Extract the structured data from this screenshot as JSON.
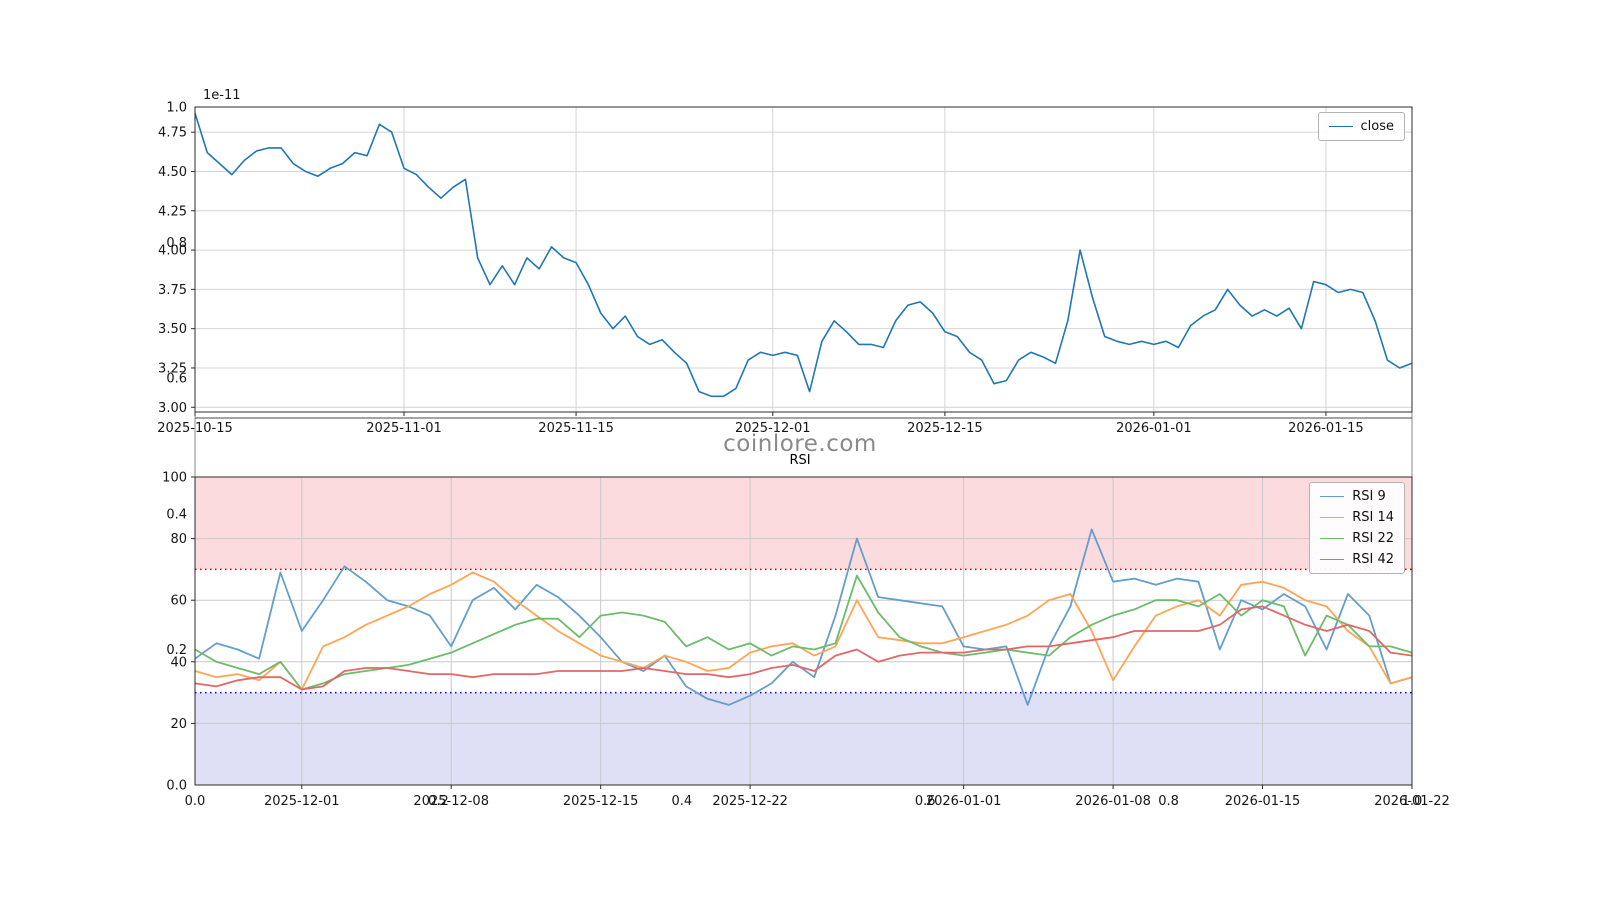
{
  "watermark": "coinlore.com",
  "phantom_axis": {
    "left_labels": [
      "1.0",
      "0.8",
      "0.6",
      "0.4",
      "0.2",
      "0.0"
    ],
    "bottom_labels": [
      "0.0",
      "0.2",
      "0.4",
      "0.6",
      "0.8",
      "1.0"
    ]
  },
  "chart_data": [
    {
      "type": "line",
      "title": "",
      "y_offset_text": "1e-11",
      "ylim": [
        2.97,
        4.91
      ],
      "yticks": [
        3.0,
        3.25,
        3.5,
        3.75,
        4.0,
        4.25,
        4.5,
        4.75
      ],
      "ytick_labels": [
        "3.00",
        "3.25",
        "3.50",
        "3.75",
        "4.00",
        "4.25",
        "4.50",
        "4.75"
      ],
      "xticks": [
        {
          "day": 0,
          "label": "2025-10-15"
        },
        {
          "day": 17,
          "label": "2025-11-01"
        },
        {
          "day": 31,
          "label": "2025-11-15"
        },
        {
          "day": 47,
          "label": "2025-12-01"
        },
        {
          "day": 61,
          "label": "2025-12-15"
        },
        {
          "day": 78,
          "label": "2026-01-01"
        },
        {
          "day": 92,
          "label": "2026-01-15"
        }
      ],
      "grid": true,
      "legend_position": "upper right",
      "series": [
        {
          "name": "close",
          "color": "#1f77b4",
          "values": [
            4.87,
            4.62,
            4.55,
            4.48,
            4.57,
            4.63,
            4.65,
            4.65,
            4.55,
            4.5,
            4.47,
            4.52,
            4.55,
            4.62,
            4.6,
            4.8,
            4.75,
            4.52,
            4.48,
            4.4,
            4.33,
            4.4,
            4.45,
            3.95,
            3.78,
            3.9,
            3.78,
            3.95,
            3.88,
            4.02,
            3.95,
            3.92,
            3.78,
            3.6,
            3.5,
            3.58,
            3.45,
            3.4,
            3.43,
            3.35,
            3.28,
            3.1,
            3.07,
            3.07,
            3.12,
            3.3,
            3.35,
            3.33,
            3.35,
            3.33,
            3.1,
            3.42,
            3.55,
            3.48,
            3.4,
            3.4,
            3.38,
            3.55,
            3.65,
            3.67,
            3.6,
            3.48,
            3.45,
            3.35,
            3.3,
            3.15,
            3.17,
            3.3,
            3.35,
            3.32,
            3.28,
            3.55,
            4.0,
            3.7,
            3.45,
            3.42,
            3.4,
            3.42,
            3.4,
            3.42,
            3.38,
            3.52,
            3.58,
            3.62,
            3.75,
            3.65,
            3.58,
            3.62,
            3.58,
            3.63,
            3.5,
            3.8,
            3.78,
            3.73,
            3.75,
            3.73,
            3.55,
            3.3,
            3.25,
            3.28
          ]
        }
      ]
    },
    {
      "type": "line",
      "title": "RSI",
      "ylim": [
        0,
        100
      ],
      "yticks": [
        20,
        40,
        60,
        80,
        100
      ],
      "ytick_labels": [
        "20",
        "40",
        "60",
        "80",
        "100"
      ],
      "overbought_level": 70,
      "oversold_level": 30,
      "overbought_fill": "#fbdbdd",
      "oversold_fill": "#dfdff6",
      "overbought_line_color": "#d40000",
      "oversold_line_color": "#0000c0",
      "xticks": [
        {
          "day": 5,
          "label": "2025-12-01"
        },
        {
          "day": 12,
          "label": "2025-12-08"
        },
        {
          "day": 19,
          "label": "2025-12-15"
        },
        {
          "day": 26,
          "label": "2025-12-22"
        },
        {
          "day": 36,
          "label": "2026-01-01"
        },
        {
          "day": 43,
          "label": "2026-01-08"
        },
        {
          "day": 50,
          "label": "2026-01-15"
        },
        {
          "day": 57,
          "label": "2026-01-22"
        }
      ],
      "grid": true,
      "legend_position": "upper right",
      "series": [
        {
          "name": "RSI 9",
          "color": "#639fca",
          "values": [
            41,
            46,
            44,
            41,
            69,
            50,
            60,
            71,
            66,
            60,
            58,
            55,
            45,
            60,
            64,
            57,
            65,
            61,
            55,
            48,
            40,
            37,
            42,
            32,
            28,
            26,
            29,
            33,
            40,
            35,
            55,
            80,
            61,
            60,
            59,
            58,
            45,
            44,
            45,
            26,
            45,
            58,
            83,
            66,
            67,
            65,
            67,
            66,
            44,
            60,
            57,
            62,
            58,
            44,
            62,
            55,
            33,
            35
          ]
        },
        {
          "name": "RSI 14",
          "color": "#ffa556",
          "values": [
            37,
            35,
            36,
            34,
            40,
            31,
            45,
            48,
            52,
            55,
            58,
            62,
            65,
            69,
            66,
            60,
            55,
            50,
            46,
            42,
            40,
            38,
            42,
            40,
            37,
            38,
            43,
            45,
            46,
            42,
            45,
            60,
            48,
            47,
            46,
            46,
            48,
            50,
            52,
            55,
            60,
            62,
            50,
            34,
            45,
            55,
            58,
            60,
            55,
            65,
            66,
            64,
            60,
            58,
            50,
            45,
            33,
            35
          ]
        },
        {
          "name": "RSI 22",
          "color": "#6bbc6b",
          "values": [
            44,
            40,
            38,
            36,
            40,
            31,
            33,
            36,
            37,
            38,
            39,
            41,
            43,
            46,
            49,
            52,
            54,
            54,
            48,
            55,
            56,
            55,
            53,
            45,
            48,
            44,
            46,
            42,
            45,
            44,
            46,
            68,
            56,
            48,
            45,
            43,
            42,
            43,
            44,
            43,
            42,
            48,
            52,
            55,
            57,
            60,
            60,
            58,
            62,
            55,
            60,
            58,
            42,
            55,
            52,
            45,
            45,
            43
          ]
        },
        {
          "name": "RSI 42",
          "color": "#e26868",
          "values": [
            33,
            32,
            34,
            35,
            35,
            31,
            32,
            37,
            38,
            38,
            37,
            36,
            36,
            35,
            36,
            36,
            36,
            37,
            37,
            37,
            37,
            38,
            37,
            36,
            36,
            35,
            36,
            38,
            39,
            37,
            42,
            44,
            40,
            42,
            43,
            43,
            43,
            44,
            44,
            45,
            45,
            46,
            47,
            48,
            50,
            50,
            50,
            50,
            52,
            57,
            58,
            55,
            52,
            50,
            52,
            50,
            43,
            42
          ]
        }
      ]
    }
  ]
}
